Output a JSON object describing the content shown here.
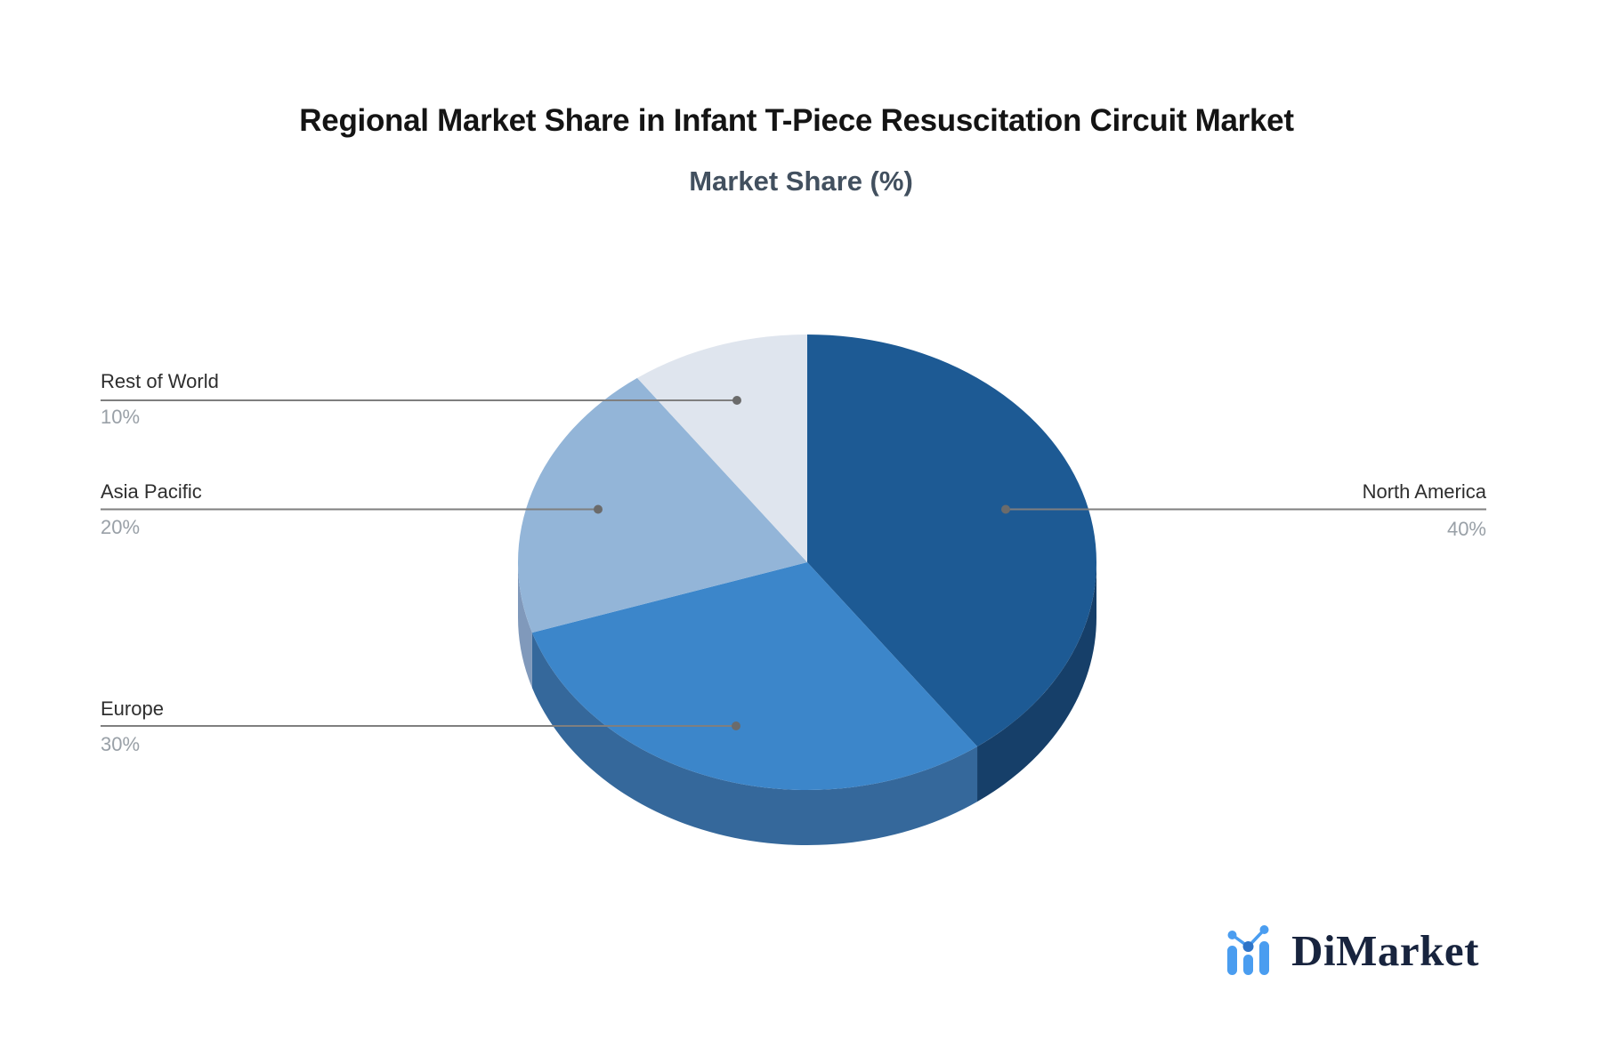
{
  "title": "Regional Market Share in Infant T-Piece Resuscitation Circuit Market",
  "subtitle": "Market Share (%)",
  "chart_data": {
    "type": "pie",
    "style": "3d",
    "unit": "%",
    "start_angle_deg": 0,
    "direction": "clockwise",
    "slices": [
      {
        "label": "North America",
        "value": 40,
        "pct_label": "40%",
        "color": "#1D5A94",
        "side_color": "#163F69",
        "label_side": "right"
      },
      {
        "label": "Europe",
        "value": 30,
        "pct_label": "30%",
        "color": "#3C86CA",
        "side_color": "#35689B",
        "label_side": "left"
      },
      {
        "label": "Asia Pacific",
        "value": 20,
        "pct_label": "20%",
        "color": "#93B5D8",
        "side_color": "#8099BB",
        "label_side": "left"
      },
      {
        "label": "Rest of World",
        "value": 10,
        "pct_label": "10%",
        "color": "#DFE5EE",
        "side_color": "#B8C4D4",
        "label_side": "left"
      }
    ]
  },
  "logo": {
    "text": "DiMarket",
    "icon": "bar-line-chart-icon",
    "icon_color": "#4A9DF0",
    "icon_accent_color": "#2E74C8",
    "text_color": "#18243E"
  },
  "colors": {
    "background": "#FFFFFF",
    "title": "#141414",
    "subtitle": "#42505F",
    "label_name": "#2E2E2E",
    "label_pct": "#99A0A7",
    "leader_line": "#7F7F7F",
    "leader_dot": "#6B6B6B"
  }
}
